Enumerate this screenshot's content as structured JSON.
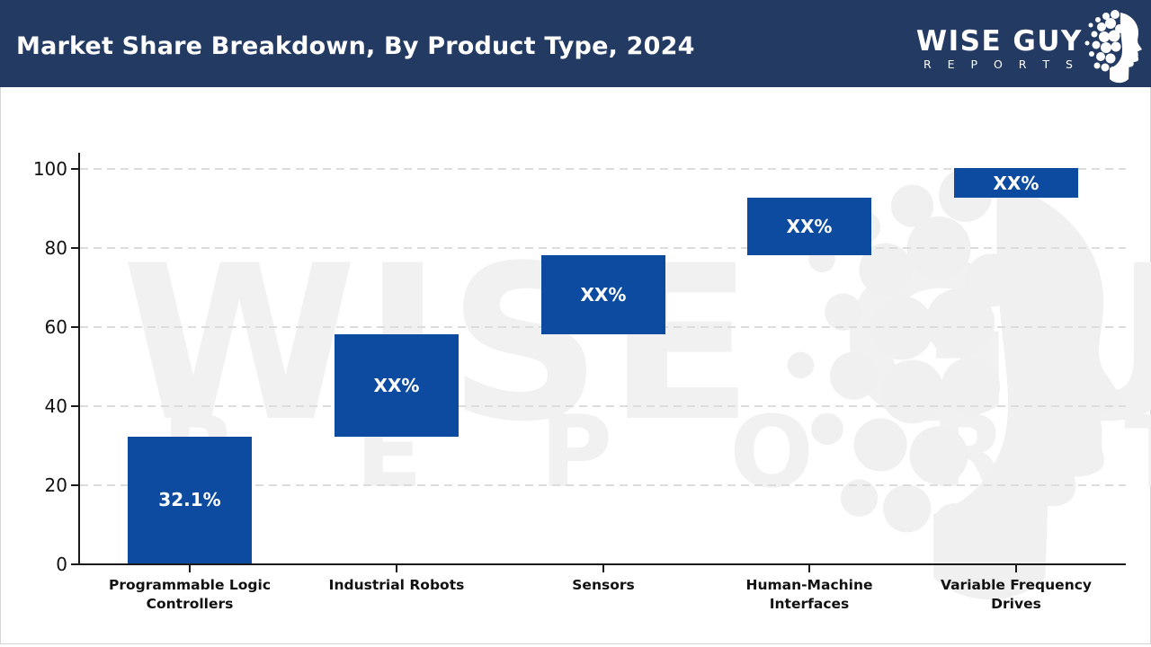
{
  "header": {
    "title": "Market Share Breakdown, By Product Type, 2024",
    "logo": {
      "name": "WISE GUY",
      "sub": "R E P O R T S"
    }
  },
  "watermark": {
    "line1": "WISE GUY",
    "line2": "R E P O R T S"
  },
  "colors": {
    "header_bg": "#233a63",
    "bar": "#0d4ba1",
    "grid": "#dcdcdc",
    "axis": "#1a1a1a",
    "watermark": "#f1f1f1",
    "bar_label": "#ffffff"
  },
  "chart_data": {
    "type": "bar",
    "subtype": "waterfall",
    "title": "Market Share Breakdown, By Product Type, 2024",
    "categories": [
      "Programmable Logic\nControllers",
      "Industrial Robots",
      "Sensors",
      "Human-Machine\nInterfaces",
      "Variable Frequency\nDrives"
    ],
    "segments": [
      {
        "category": "Programmable Logic Controllers",
        "start": 0,
        "end": 32.1,
        "label": "32.1%"
      },
      {
        "category": "Industrial Robots",
        "start": 32.1,
        "end": 58,
        "label": "XX%"
      },
      {
        "category": "Sensors",
        "start": 58,
        "end": 78,
        "label": "XX%"
      },
      {
        "category": "Human-Machine Interfaces",
        "start": 78,
        "end": 92.5,
        "label": "XX%"
      },
      {
        "category": "Variable Frequency Drives",
        "start": 92.5,
        "end": 100,
        "label": "XX%"
      }
    ],
    "ylabel": "",
    "xlabel": "",
    "ylim": [
      0,
      100
    ],
    "yticks": [
      0,
      20,
      40,
      60,
      80,
      100
    ],
    "grid": "horizontal-dashed",
    "legend": null
  }
}
